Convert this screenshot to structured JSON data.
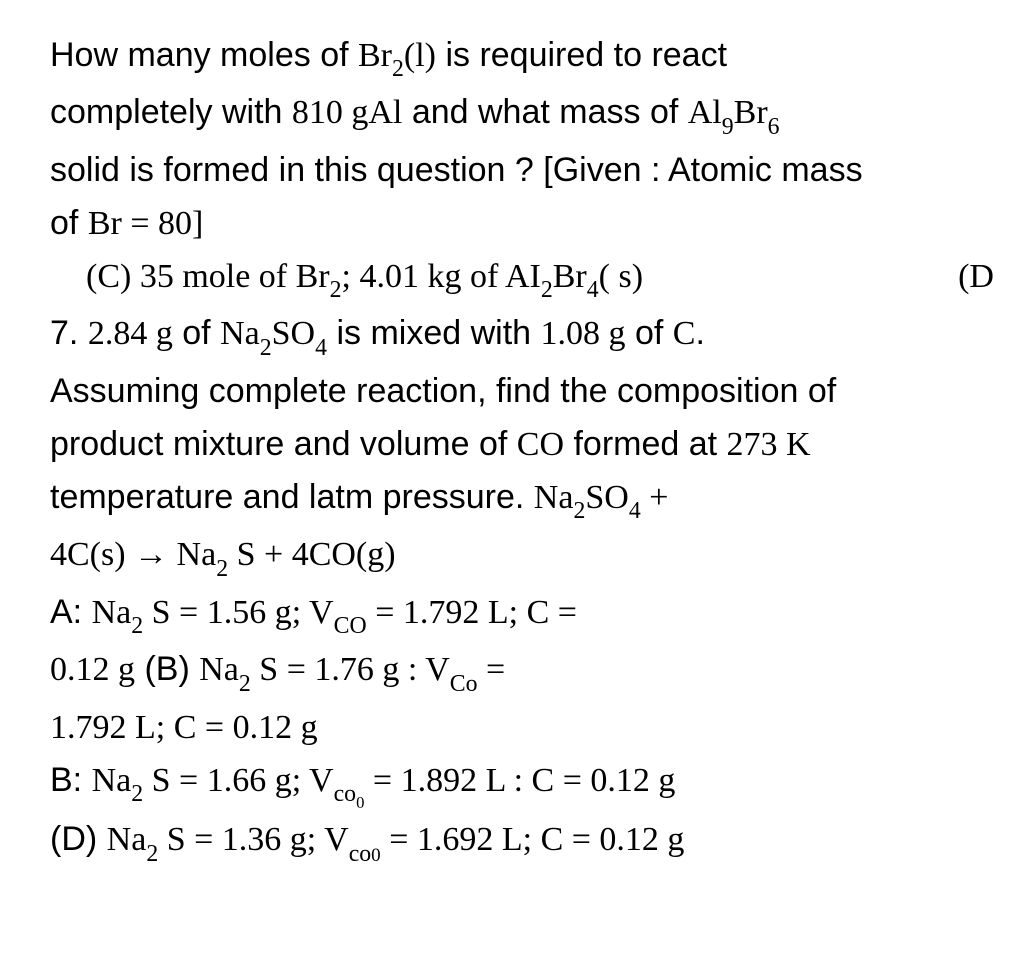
{
  "q6": {
    "line1_a": "How many moles of ",
    "line1_b": " is required to react",
    "line2_a": "completely with ",
    "line2_b": " and what mass of ",
    "line3": "solid is formed in this question ? [Given : Atomic mass",
    "line4_a": "of ",
    "line4_b": "]",
    "br2l": "Br",
    "br2l_sub": "2",
    "br2l_after": "(l)",
    "mass_al": "810 gAl",
    "al9br6_a": "Al",
    "al9br6_s1": "9",
    "al9br6_b": "Br",
    "al9br6_s2": "6",
    "br_eq": "Br = 80",
    "optC_a": "(C) 35 mole of Br",
    "optC_s": "2",
    "optC_b": "; 4.01 kg of ",
    "ai2_a": "AI",
    "ai2_s": "2",
    "ai2_b": "Br",
    "ai2_s2": "4",
    "ai2_c": "( s)",
    "optD": "(D"
  },
  "q7": {
    "line1_a": "7. ",
    "line1_b": " of ",
    "line1_c": " is mixed with ",
    "line1_d": " of ",
    "line1_e": ".",
    "mass1": "2.84 g",
    "na2so4_a": "Na",
    "na2so4_s1": "2",
    "na2so4_b": "SO",
    "na2so4_s2": "4",
    "mass2": "1.08 g",
    "C": "C",
    "line2": "Assuming complete reaction, find the composition of",
    "line3_a": "product mixture and volume of ",
    "line3_b": " formed at ",
    "CO": "CO",
    "temp": "273 K",
    "line4_a": "temperature and latm pressure. ",
    "plus": " +",
    "eq_a": "4C(s) → Na",
    "eq_s": "2",
    "eq_b": " S + 4CO(g)",
    "optA_pre": "A: ",
    "optA_a": "Na",
    "optA_s": "2",
    "optA_b": " S = 1.56 g; V",
    "optA_co": "CO",
    "optA_c": " = 1.792 L; C =",
    "optA2_a": "0.12 g",
    "optB_pre": "    (B) ",
    "optB_a": "Na",
    "optB_s": "2",
    "optB_b": " S = 1.76 g : V",
    "optB_co": "Co",
    "optB_c": " =",
    "optB2": "1.792 L; C = 0.12 g",
    "optBB_pre": "B: ",
    "optBB_a": "Na",
    "optBB_s": "2",
    "optBB_b": " S = 1.66 g; V",
    "optBB_co": "co",
    "optBB_co2": "0",
    "optBB_c": " = 1.892 L : C = 0.12 g",
    "optD_pre": "(D) ",
    "optD_a": "Na",
    "optD_s": "2",
    "optD_b": " S = 1.36 g; V",
    "optD_co": "co",
    "optD_co2": "0",
    "optD_c": " = 1.692 L; C = 0.12 g"
  }
}
